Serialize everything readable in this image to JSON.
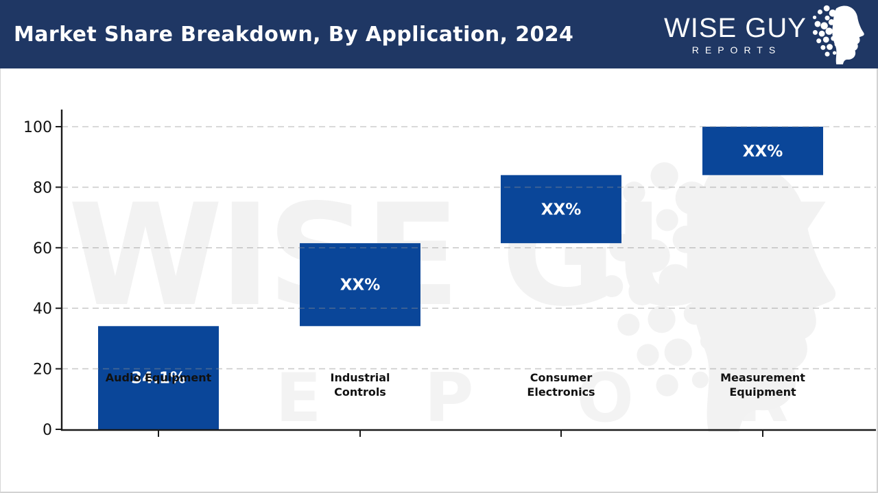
{
  "header": {
    "title": "Market Share Breakdown, By Application, 2024",
    "logo": {
      "line1": "WISE GUY",
      "line2": "REPORTS"
    }
  },
  "watermark": {
    "line1": "WISE GUY",
    "line2": "R E P O R T S"
  },
  "colors": {
    "header_bg": "#1f3764",
    "bar": "#0a4699",
    "grid": "#8f8f8f",
    "axis": "#1a1a1a",
    "value_label": "#ffffff",
    "tick_label": "#111111",
    "watermark": "#f2f2f2"
  },
  "chart_data": {
    "type": "bar",
    "subtype": "floating-waterfall",
    "title": "Market Share Breakdown, By Application, 2024",
    "xlabel": "",
    "ylabel": "",
    "ylim": [
      0,
      100
    ],
    "yticks": [
      0,
      20,
      40,
      60,
      80,
      100
    ],
    "grid": "horizontal dashed, drawn over bars",
    "legend": "none",
    "categories": [
      "Audio Equipment",
      "Industrial\nControls",
      "Consumer\nElectronics",
      "Measurement\nEquipment"
    ],
    "segments": [
      {
        "category": "Audio Equipment",
        "start": 0,
        "end": 34.1,
        "label": "34.1%"
      },
      {
        "category": "Industrial Controls",
        "start": 34.1,
        "end": 61.5,
        "label": "XX%"
      },
      {
        "category": "Consumer Electronics",
        "start": 61.5,
        "end": 84.0,
        "label": "XX%"
      },
      {
        "category": "Measurement Equipment",
        "start": 84.0,
        "end": 100.0,
        "label": "XX%"
      }
    ]
  }
}
